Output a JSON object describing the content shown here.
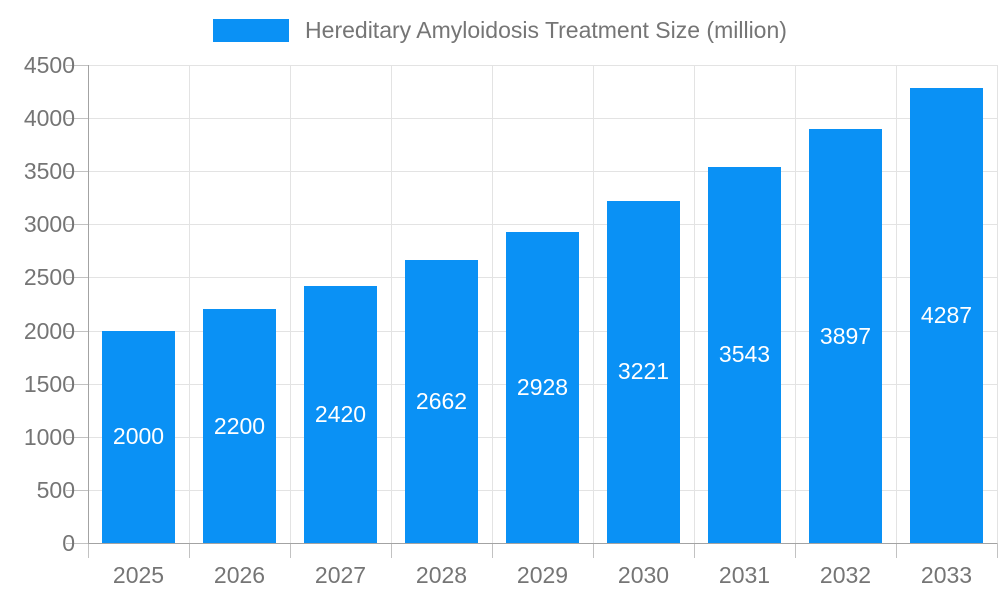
{
  "legend": {
    "label": "Hereditary Amyloidosis Treatment Size (million)"
  },
  "chart_data": {
    "type": "bar",
    "title": "Hereditary Amyloidosis Treatment Size (million)",
    "categories": [
      "2025",
      "2026",
      "2027",
      "2028",
      "2029",
      "2030",
      "2031",
      "2032",
      "2033"
    ],
    "values": [
      2000,
      2200,
      2420,
      2662,
      2928,
      3221,
      3543,
      3897,
      4287
    ],
    "xlabel": "",
    "ylabel": "",
    "ylim": [
      0,
      4500
    ],
    "ytick_step": 500,
    "grid": true,
    "legend_position": "top",
    "bar_color": "#0a91f5",
    "bar_label_color": "#ffffff",
    "axis_text_color": "#757575"
  }
}
